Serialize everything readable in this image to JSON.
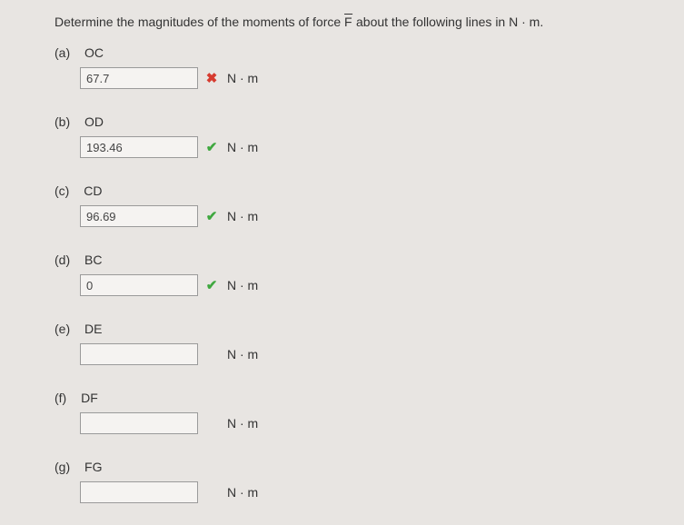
{
  "prompt_pre": "Determine the magnitudes of the moments of force ",
  "prompt_var": "F",
  "prompt_post": " about the following lines in N · m.",
  "unit": "N · m",
  "items": [
    {
      "letter": "(a)",
      "line": "OC",
      "value": "67.7",
      "status": "incorrect"
    },
    {
      "letter": "(b)",
      "line": "OD",
      "value": "193.46",
      "status": "correct"
    },
    {
      "letter": "(c)",
      "line": "CD",
      "value": "96.69",
      "status": "correct"
    },
    {
      "letter": "(d)",
      "line": "BC",
      "value": "0",
      "status": "correct"
    },
    {
      "letter": "(e)",
      "line": "DE",
      "value": "",
      "status": "none"
    },
    {
      "letter": "(f)",
      "line": "DF",
      "value": "",
      "status": "none"
    },
    {
      "letter": "(g)",
      "line": "FG",
      "value": "",
      "status": "none"
    }
  ],
  "glyphs": {
    "correct": "✔",
    "incorrect": "✖"
  },
  "colors": {
    "bg": "#e8e5e2",
    "text": "#3a3a3a",
    "input_bg": "#f5f3f1",
    "input_border": "#9a9a9a",
    "correct": "#3fa83f",
    "incorrect": "#d63b2f"
  }
}
